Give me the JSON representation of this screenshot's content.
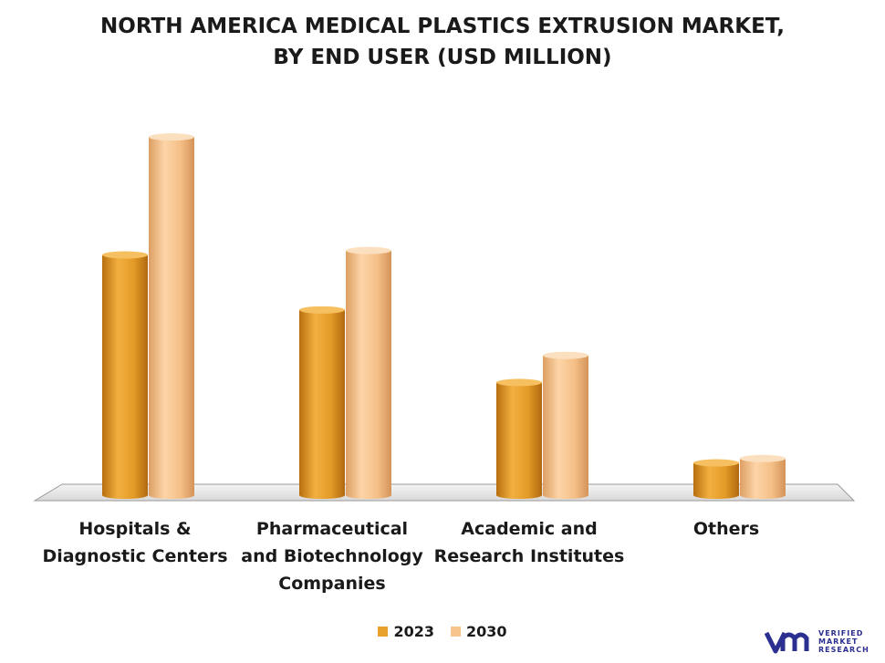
{
  "title_lines": [
    "NORTH AMERICA MEDICAL PLASTICS EXTRUSION MARKET,",
    "BY END USER (USD MILLION)"
  ],
  "legend": [
    {
      "label": "2023",
      "color": "#e8a02c"
    },
    {
      "label": "2030",
      "color": "#f7c48d"
    }
  ],
  "chart_data": {
    "type": "bar",
    "title": "NORTH AMERICA MEDICAL PLASTICS EXTRUSION MARKET, BY END USER (USD MILLION)",
    "categories": [
      [
        "Hospitals &",
        "Diagnostic Centers"
      ],
      [
        "Pharmaceutical",
        "and Biotechnology",
        "Companies"
      ],
      [
        "Academic and",
        "Research Institutes"
      ],
      [
        "Others"
      ]
    ],
    "series": [
      {
        "name": "2023",
        "values": [
          275,
          212,
          129,
          37
        ]
      },
      {
        "name": "2030",
        "values": [
          410,
          280,
          160,
          42
        ]
      }
    ],
    "ylim": [
      0,
      430
    ],
    "grid": false,
    "legend_position": "bottom"
  },
  "logo": {
    "lines": [
      "VERIFIED",
      "MARKET",
      "RESEARCH"
    ],
    "mark": "vmr-logo-icon",
    "reg": "®"
  }
}
